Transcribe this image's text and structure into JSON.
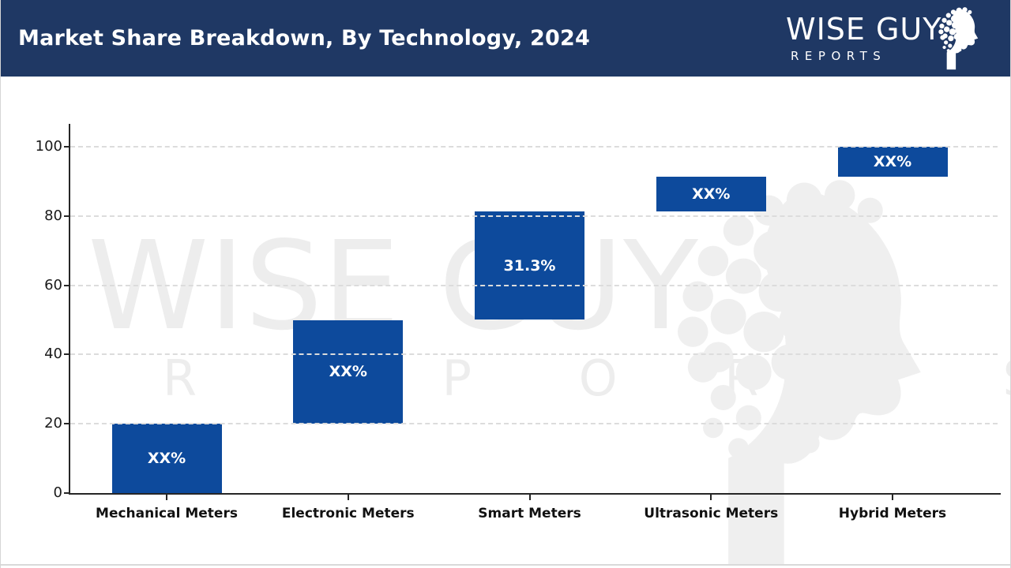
{
  "header": {
    "title": "Market Share Breakdown, By Technology, 2024",
    "logo": {
      "line1": "WISE GUY",
      "line2": "R E P O R T S"
    }
  },
  "watermark": {
    "line1": "WISE GUY",
    "line2": "R E P O R T S"
  },
  "chart_data": {
    "type": "bar",
    "subtype": "waterfall",
    "title": "Market Share Breakdown, By Technology, 2024",
    "xlabel": "",
    "ylabel": "",
    "categories": [
      "Mechanical Meters",
      "Electronic Meters",
      "Smart Meters",
      "Ultrasonic Meters",
      "Hybrid Meters"
    ],
    "bars": [
      {
        "category": "Mechanical Meters",
        "start": 0,
        "end": 20,
        "size_pct": 20,
        "label": "XX%"
      },
      {
        "category": "Electronic Meters",
        "start": 20,
        "end": 50,
        "size_pct": 30,
        "label": "XX%"
      },
      {
        "category": "Smart Meters",
        "start": 50,
        "end": 81.3,
        "size_pct": 31.3,
        "label": "31.3%"
      },
      {
        "category": "Ultrasonic Meters",
        "start": 81.3,
        "end": 91.3,
        "size_pct": 10,
        "label": "XX%"
      },
      {
        "category": "Hybrid Meters",
        "start": 91.3,
        "end": 100,
        "size_pct": 8.7,
        "label": "XX%"
      }
    ],
    "yticks": [
      0,
      20,
      40,
      60,
      80,
      100
    ],
    "ylim": [
      0,
      105
    ],
    "grid": "horizontal dashed, drawn over bars",
    "legend": "none"
  },
  "colors": {
    "header_bg": "#1f3864",
    "bar": "#0d4a9c",
    "bar_label": "#ffffff",
    "grid": "#dcdcdc",
    "axis": "#262626",
    "tick_text": "#1a1a1a",
    "watermark": "#ededed"
  }
}
